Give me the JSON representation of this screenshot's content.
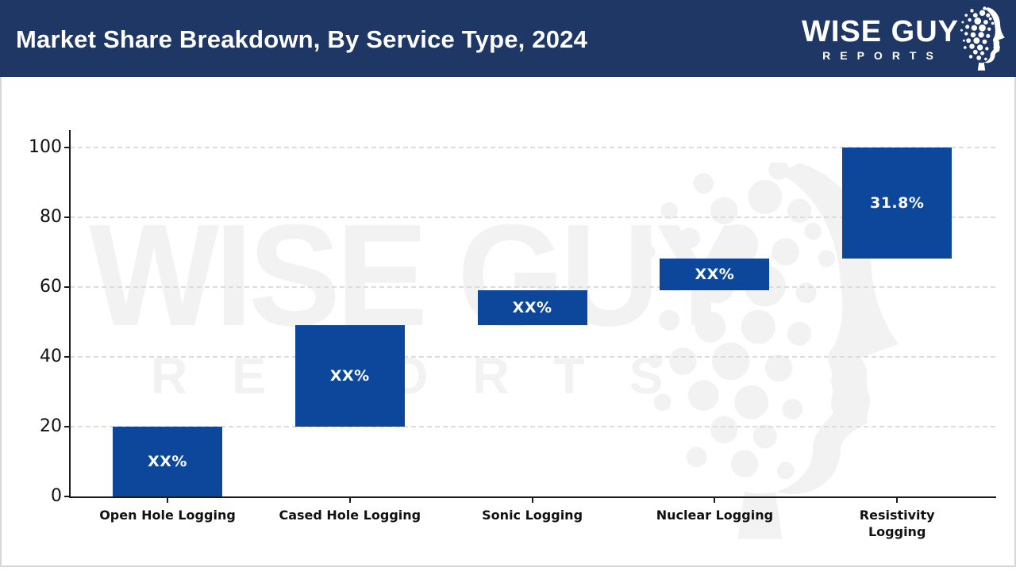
{
  "header": {
    "title": "Market Share Breakdown, By Service Type, 2024",
    "bg_color": "#1F3765",
    "logo": {
      "wordmark": "WISE GUY",
      "sub": "REPORTS"
    }
  },
  "watermark": {
    "line1": "WISE GUY",
    "line2": "REPORTS",
    "color": "#f2f2f2"
  },
  "chart_data": {
    "type": "bar",
    "subtype": "waterfall",
    "title": "Market Share Breakdown, By Service Type, 2024",
    "xlabel": "",
    "ylabel": "",
    "ylim": [
      0,
      100
    ],
    "yticks": [
      0,
      20,
      40,
      60,
      80,
      100
    ],
    "grid": true,
    "legend": false,
    "bar_color": "#0C479C",
    "grid_color": "#dcdcdc",
    "axis_color": "#1a1a1a",
    "categories": [
      "Open Hole Logging",
      "Cased Hole Logging",
      "Sonic Logging",
      "Nuclear Logging",
      "Resistivity Logging"
    ],
    "segments": [
      {
        "category": "Open Hole Logging",
        "tick_label": "Open Hole Logging",
        "start": 0,
        "end": 20,
        "value": 20,
        "label": "XX%"
      },
      {
        "category": "Cased Hole Logging",
        "tick_label": "Cased Hole Logging",
        "start": 20,
        "end": 49,
        "value": 29,
        "label": "XX%"
      },
      {
        "category": "Sonic Logging",
        "tick_label": "Sonic Logging",
        "start": 49,
        "end": 59,
        "value": 10,
        "label": "XX%"
      },
      {
        "category": "Nuclear Logging",
        "tick_label": "Nuclear Logging",
        "start": 59,
        "end": 68.2,
        "value": 9.2,
        "label": "XX%"
      },
      {
        "category": "Resistivity Logging",
        "tick_label": "Resistivity\nLogging",
        "start": 68.2,
        "end": 100,
        "value": 31.8,
        "label": "31.8%"
      }
    ]
  }
}
